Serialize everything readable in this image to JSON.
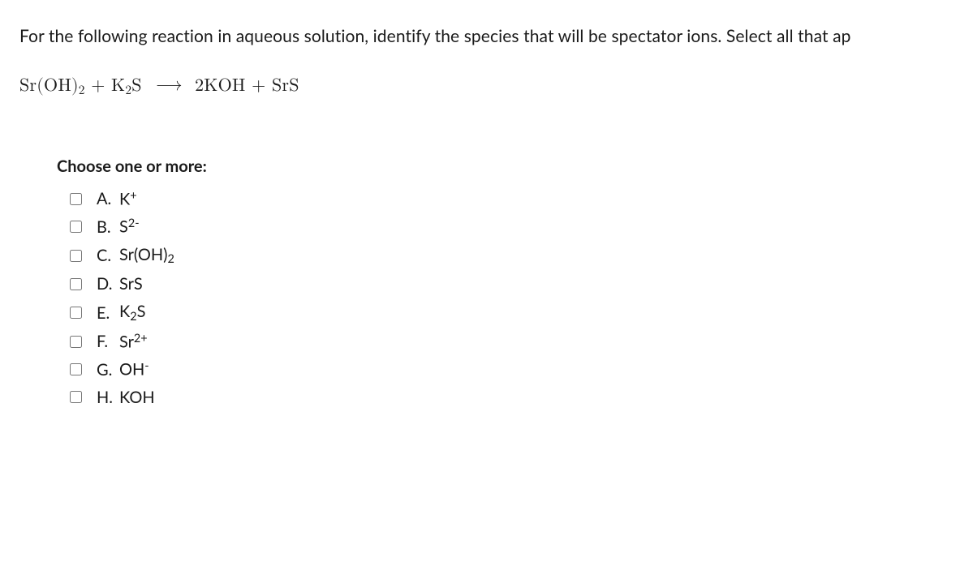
{
  "question": {
    "prompt": "For the following reaction in aqueous solution, identify the species that will be spectator ions. Select all that ap",
    "equation_html": "Sr(OH)<span class=\"sub\">2</span> + K<span class=\"sub\">2</span>S <span class=\"arrow\">⟶</span> 2KOH + SrS",
    "fontsize_prompt": 21,
    "fontsize_equation": 22,
    "text_color": "#1a1a1a",
    "background_color": "#ffffff"
  },
  "choose": {
    "title": "Choose one or more:",
    "title_fontsize": 20,
    "title_weight": "bold",
    "options": [
      {
        "letter": "A.",
        "html": "K<span class=\"sup\">+</span>"
      },
      {
        "letter": "B.",
        "html": "S<span class=\"sup\">2-</span>"
      },
      {
        "letter": "C.",
        "html": "Sr(OH)<span class=\"subs\">2</span>"
      },
      {
        "letter": "D.",
        "html": "SrS"
      },
      {
        "letter": "E.",
        "html": "K<span class=\"subs\">2</span>S"
      },
      {
        "letter": "F.",
        "html": "Sr<span class=\"sup\">2+</span>"
      },
      {
        "letter": "G.",
        "html": "OH<span class=\"sup\">-</span>"
      },
      {
        "letter": "H.",
        "html": "KOH"
      }
    ],
    "option_fontsize": 20,
    "checkbox_size": 15
  }
}
